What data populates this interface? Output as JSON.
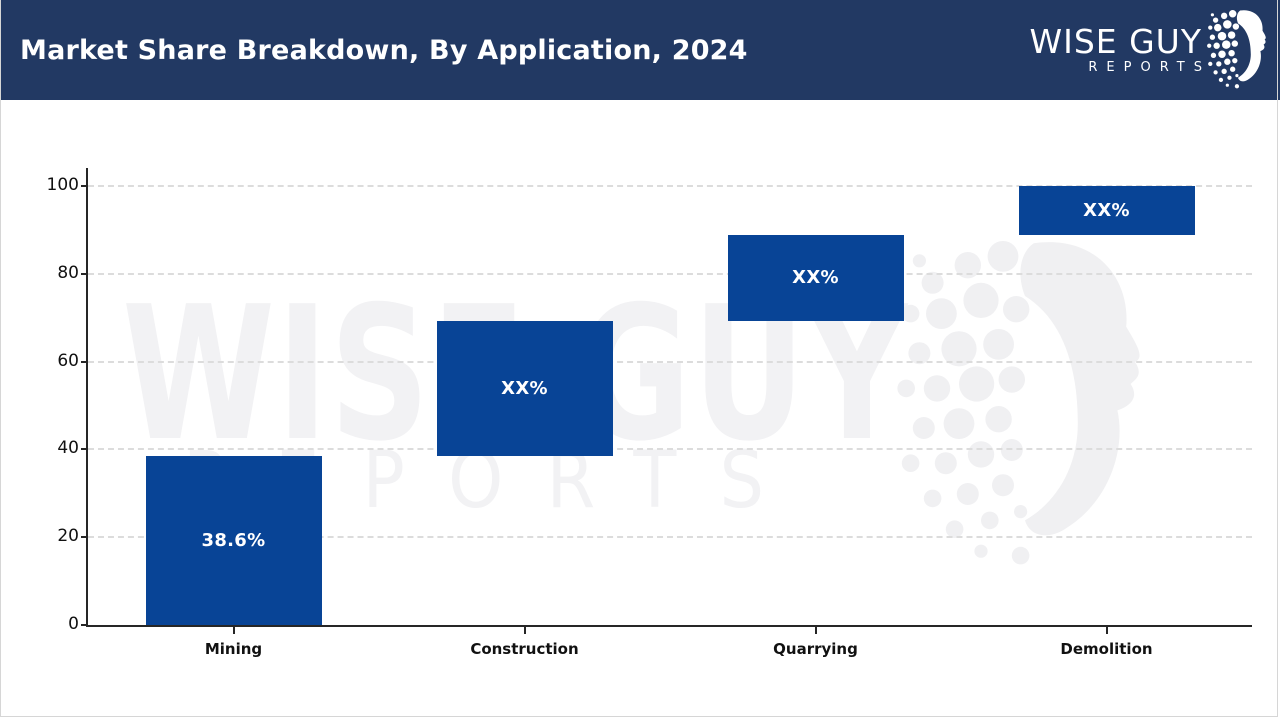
{
  "header": {
    "title": "Market Share Breakdown, By Application, 2024",
    "logo": {
      "line1": "WISE GUY",
      "line2": "REPORTS"
    }
  },
  "watermark": {
    "line1": "WISE GUY",
    "line2": "REPORTS"
  },
  "chart_data": {
    "type": "bar",
    "subtype": "waterfall",
    "title": "Market Share Breakdown, By Application, 2024",
    "categories": [
      "Mining",
      "Construction",
      "Quarrying",
      "Demolition"
    ],
    "segments": [
      {
        "category": "Mining",
        "start": 0,
        "end": 38.6,
        "value": 38.6,
        "label": "38.6%"
      },
      {
        "category": "Construction",
        "start": 38.6,
        "end": 69.2,
        "value": 30.6,
        "label": "XX%"
      },
      {
        "category": "Quarrying",
        "start": 69.2,
        "end": 88.9,
        "value": 19.7,
        "label": "XX%"
      },
      {
        "category": "Demolition",
        "start": 88.9,
        "end": 100,
        "value": 11.1,
        "label": "XX%"
      }
    ],
    "ylim": [
      0,
      100
    ],
    "yticks": [
      0,
      20,
      40,
      60,
      80,
      100
    ],
    "grid": "horizontal-dashed",
    "legend": "none",
    "bar_color": "#084496",
    "bar_label_color": "#ffffff",
    "header_bg_color": "#223963",
    "gridline_color": "#dcdcdc"
  }
}
